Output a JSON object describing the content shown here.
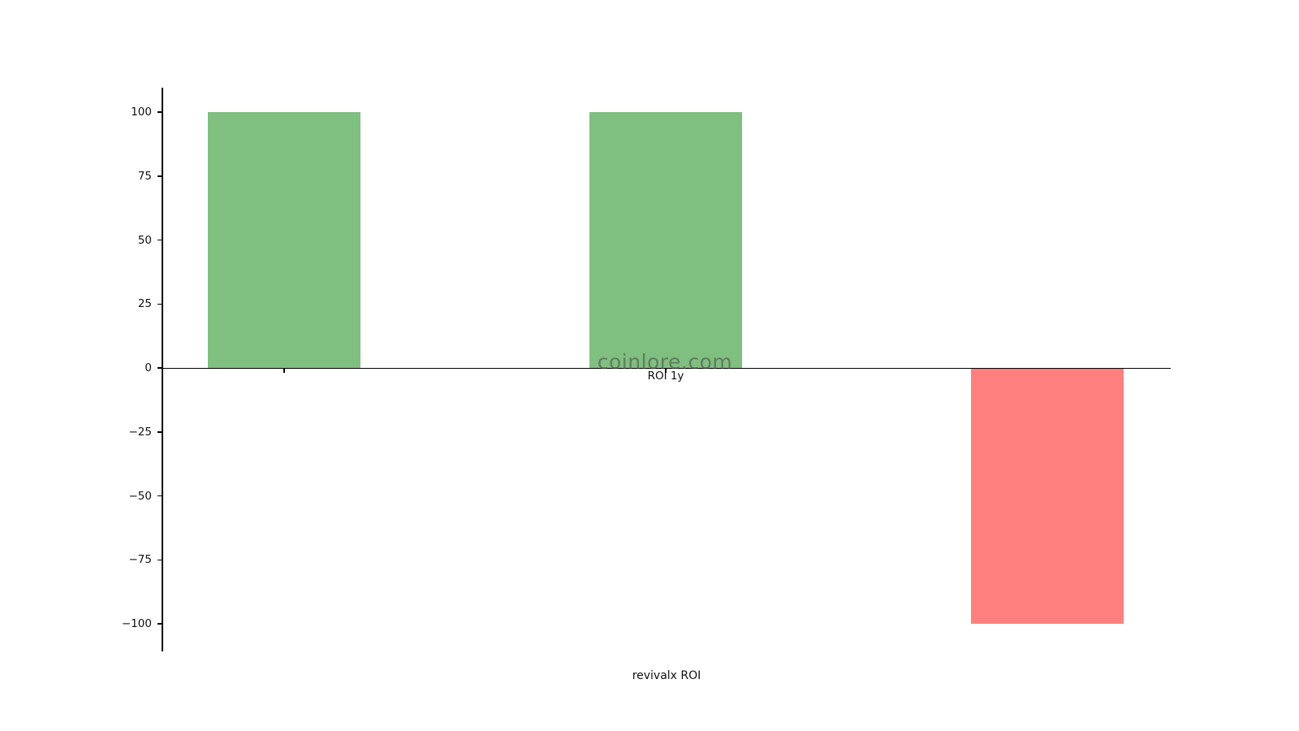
{
  "watermark": "coinlore.com",
  "chart_data": {
    "type": "bar",
    "title": "",
    "xlabel": "revivalx ROI",
    "ylabel": "",
    "categories": [
      "",
      "ROI 1y",
      ""
    ],
    "values": [
      100,
      100,
      -100
    ],
    "bar_colors": [
      "#7fbf7f",
      "#7fbf7f",
      "#ff7f7f"
    ],
    "positive_color": "#7fbf7f",
    "negative_color": "#ff7f7f",
    "yticks": [
      100,
      75,
      50,
      25,
      0,
      -25,
      -50,
      -75,
      -100
    ],
    "ylim": [
      -110,
      110
    ],
    "grid": false,
    "legend": null,
    "axis_color": "#000000",
    "text_color": "#111111",
    "watermark_color": "#505050",
    "background_color": "#ffffff"
  }
}
